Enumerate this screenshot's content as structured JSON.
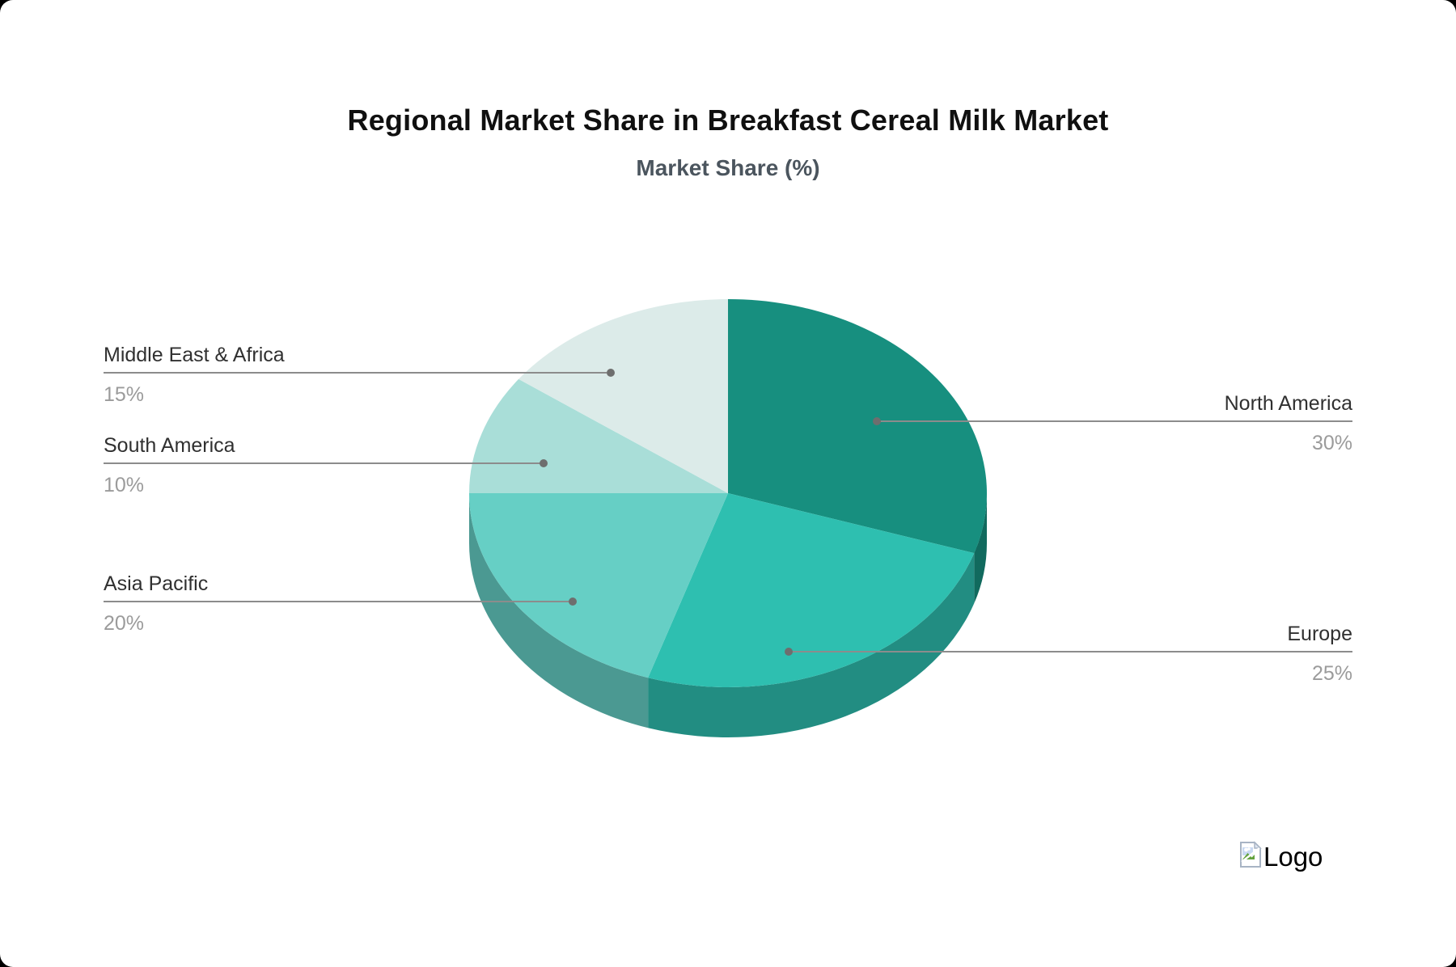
{
  "header": {
    "title": "Regional Market Share in Breakfast Cereal Milk Market",
    "subtitle": "Market Share (%)"
  },
  "chart_data": {
    "type": "pie",
    "title": "Regional Market Share in Breakfast Cereal Milk Market",
    "subtitle": "Market Share (%)",
    "unit": "%",
    "effect": "3d",
    "start_angle_deg": 0,
    "direction": "clockwise",
    "legend_position": "callout-labels",
    "slices": [
      {
        "label": "North America",
        "value": 30,
        "color": "#178F7F"
      },
      {
        "label": "Europe",
        "value": 25,
        "color": "#2EBFB0"
      },
      {
        "label": "Asia Pacific",
        "value": 20,
        "color": "#66CFC5"
      },
      {
        "label": "South America",
        "value": 10,
        "color": "#A9DED8"
      },
      {
        "label": "Middle East & Africa",
        "value": 15,
        "color": "#DCEBE9"
      }
    ]
  },
  "callouts": {
    "left": [
      {
        "name": "Middle East & Africa",
        "value": "15%"
      },
      {
        "name": "South America",
        "value": "10%"
      },
      {
        "name": "Asia Pacific",
        "value": "20%"
      }
    ],
    "right": [
      {
        "name": "North America",
        "value": "30%"
      },
      {
        "name": "Europe",
        "value": "25%"
      }
    ]
  },
  "logo": {
    "alt_text": "Logo",
    "icon": "broken-image-icon"
  },
  "palette": {
    "title_text": "#101010",
    "subtitle_text": "#4b555e",
    "label_text": "#303030",
    "value_text": "#9b9b9b",
    "connector_line": "#8c8c8c",
    "connector_dot": "#6e6e6e",
    "background": "#ffffff"
  }
}
